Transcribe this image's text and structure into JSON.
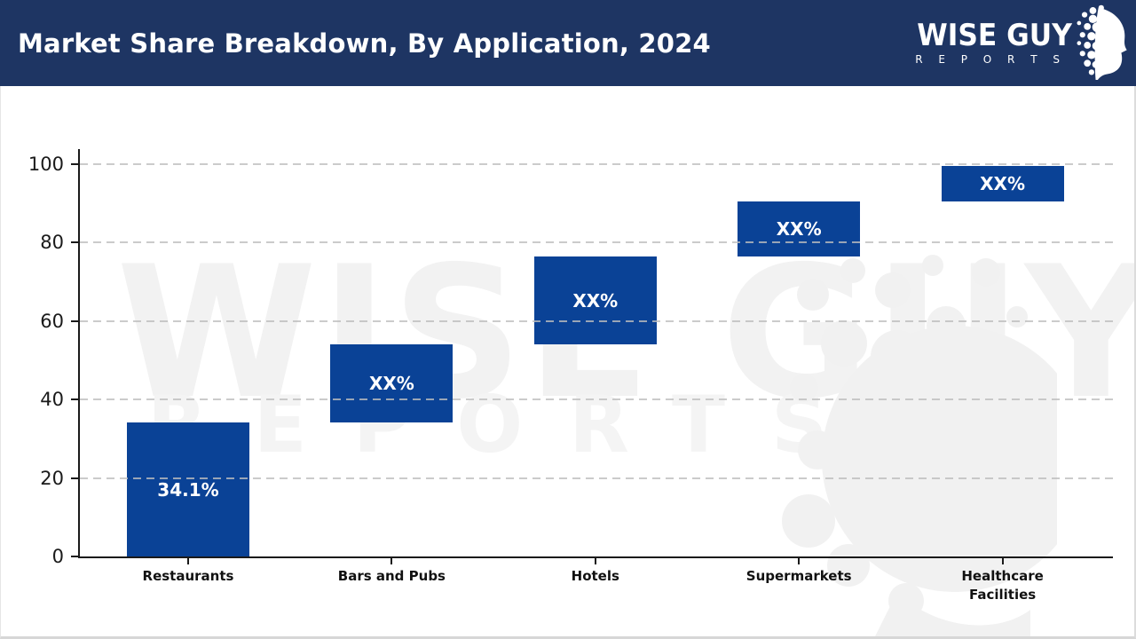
{
  "header": {
    "title": "Market Share Breakdown, By Application, 2024",
    "logo": {
      "line1": "WISE GUY",
      "line2": "R E P O R T S"
    }
  },
  "watermark": {
    "line1": "WISE GUY",
    "line2": "REPORTS"
  },
  "chart_data": {
    "type": "bar",
    "subtype": "waterfall",
    "title": "Market Share Breakdown, By Application, 2024",
    "categories": [
      "Restaurants",
      "Bars and Pubs",
      "Hotels",
      "Supermarkets",
      "Healthcare Facilities"
    ],
    "series": [
      {
        "category": "Restaurants",
        "start": 0,
        "end": 34.1,
        "label": "34.1%"
      },
      {
        "category": "Bars and Pubs",
        "start": 34.1,
        "end": 54.0,
        "label": "XX%"
      },
      {
        "category": "Hotels",
        "start": 54.0,
        "end": 76.5,
        "label": "XX%"
      },
      {
        "category": "Supermarkets",
        "start": 76.5,
        "end": 90.5,
        "label": "XX%"
      },
      {
        "category": "Healthcare Facilities",
        "start": 90.5,
        "end": 99.5,
        "label": "XX%"
      }
    ],
    "xlabel": "",
    "ylabel": "",
    "yticks": [
      0,
      20,
      40,
      60,
      80,
      100
    ],
    "ylim": [
      0,
      103.8
    ],
    "grid": "horizontal-dashed",
    "legend": "none",
    "bar_color": "#0a4296",
    "bar_label_color": "#ffffff"
  },
  "colors": {
    "header_bg": "#1e3563",
    "bar": "#0a4296",
    "grid": "#d4d4d4",
    "axis": "#1a1a1a",
    "watermark": "#f2f2f2"
  }
}
